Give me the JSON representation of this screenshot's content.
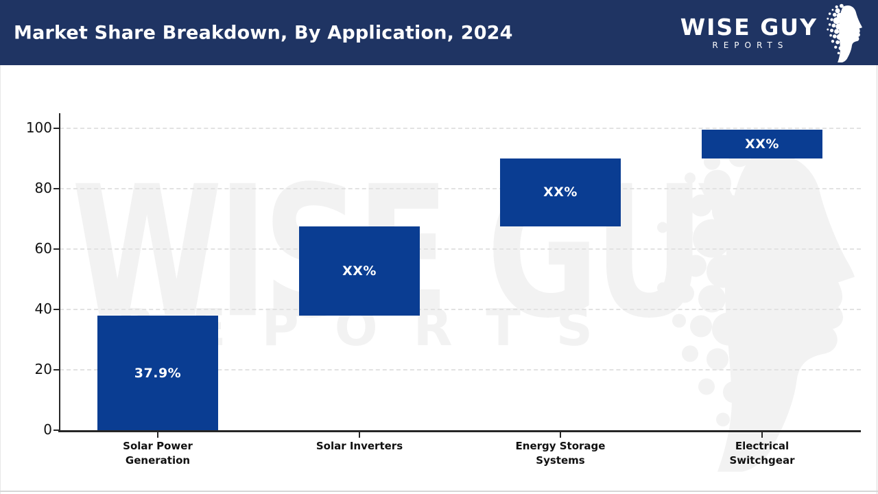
{
  "header": {
    "title": "Market Share Breakdown, By Application, 2024",
    "logo_line1": "WISE GUY",
    "logo_line2": "REPORTS"
  },
  "watermark": {
    "line1": "WISE GUY",
    "line2": "REPORTS"
  },
  "chart_data": {
    "type": "bar",
    "subtype": "waterfall",
    "title": "Market Share Breakdown, By Application, 2024",
    "categories": [
      [
        "Solar Power",
        "Generation"
      ],
      [
        "Solar Inverters"
      ],
      [
        "Energy Storage",
        "Systems"
      ],
      [
        "Electrical",
        "Switchgear"
      ]
    ],
    "segments": [
      {
        "category": "Solar Power Generation",
        "start": 0,
        "end": 37.9,
        "label": "37.9%"
      },
      {
        "category": "Solar Inverters",
        "start": 37.9,
        "end": 67.6,
        "label": "XX%"
      },
      {
        "category": "Energy Storage Systems",
        "start": 67.6,
        "end": 90.0,
        "label": "XX%"
      },
      {
        "category": "Electrical Switchgear",
        "start": 90.0,
        "end": 99.5,
        "label": "XX%"
      }
    ],
    "yticks": [
      0,
      20,
      40,
      60,
      80,
      100
    ],
    "ylim": [
      0,
      105
    ],
    "xlabel": "",
    "ylabel": "",
    "legend": "none",
    "grid": "horizontal-dashed",
    "bar_color": "#0a3d92",
    "value_label_color": "#ffffff"
  },
  "colors": {
    "header_bg": "#1f3463",
    "grid": "#e2e2e2",
    "axis": "#262626",
    "watermark": "#f2f2f2",
    "text": "#111111"
  }
}
